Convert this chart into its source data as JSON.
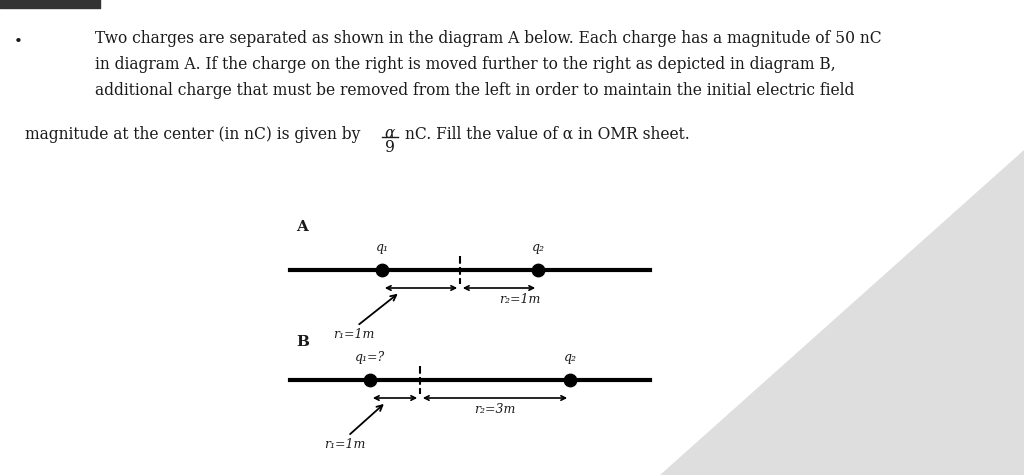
{
  "bg_color": "#ffffff",
  "text_color": "#1a1a1a",
  "paragraph_lines": [
    "Two charges are separated as shown in the diagram A below. Each charge has a magnitude of 50 nC",
    "in diagram A. If the charge on the right is moved further to the right as depicted in diagram B,",
    "additional charge that must be removed from the left in order to maintain the initial electric field"
  ],
  "inline_line": "magnitude at the center (in nC) is given by",
  "fraction_num": "α",
  "fraction_den": "9",
  "inline_suffix": "nC. Fill the value of α in OMR sheet.",
  "diag_A_label": "A",
  "diag_B_label": "B",
  "diag_A_q1_label": "q₁",
  "diag_A_q2_label": "q₂",
  "diag_B_q1_label": "q₁=?",
  "diag_B_q2_label": "q₂",
  "diag_A_r1_label": "r₁=1m",
  "diag_A_r2_label": "r₂=1m",
  "diag_B_r1_label": "r₁=1m",
  "diag_B_r2_label": "r₂=3m",
  "line_color": "#000000",
  "dot_color": "#000000",
  "arrow_color": "#000000",
  "dashed_color": "#000000",
  "watermark_color": "#c8c8c8"
}
